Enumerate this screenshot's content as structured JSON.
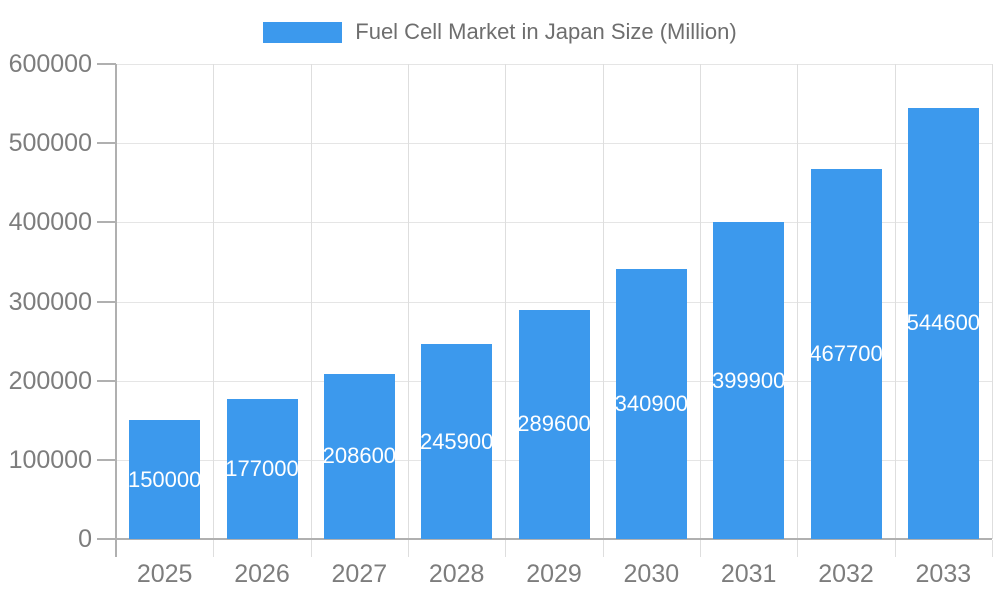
{
  "legend": {
    "label": "Fuel Cell Market in Japan Size (Million)"
  },
  "chart_data": {
    "type": "bar",
    "title": "Fuel Cell Market in Japan Size (Million)",
    "categories": [
      "2025",
      "2026",
      "2027",
      "2028",
      "2029",
      "2030",
      "2031",
      "2032",
      "2033"
    ],
    "values": [
      150000,
      177000,
      208600,
      245900,
      289600,
      340900,
      399900,
      467700,
      544600
    ],
    "series": [
      {
        "name": "Fuel Cell Market in Japan Size (Million)",
        "values": [
          150000,
          177000,
          208600,
          245900,
          289600,
          340900,
          399900,
          467700,
          544600
        ]
      }
    ],
    "value_labels_visible": true,
    "xlabel": "",
    "ylabel": "",
    "ylim": [
      0,
      600000
    ],
    "ytick_step": 100000,
    "ytick_labels": [
      "0",
      "100000",
      "200000",
      "300000",
      "400000",
      "500000",
      "600000"
    ],
    "grid": "on",
    "legend_position": "top-center"
  },
  "colors": {
    "bar": "#3C99ED",
    "bar_value_text": "#ffffff",
    "axis_line": "#b0b0b0",
    "h_gridline": "#e5e5e5",
    "v_gridline": "#dedede",
    "axis_text": "#7d7d7d",
    "legend_text": "#6e6e6e",
    "background": "#ffffff"
  }
}
